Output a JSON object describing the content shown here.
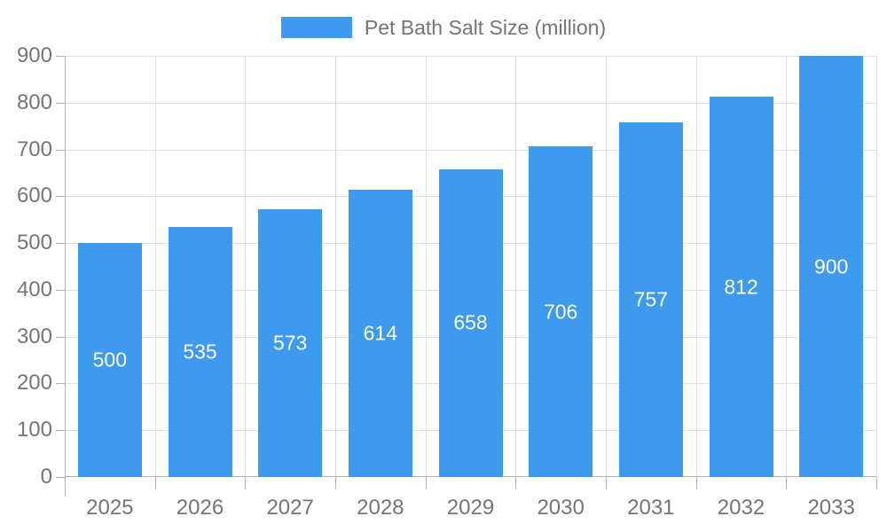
{
  "legend": {
    "label": "Pet Bath Salt Size (million)"
  },
  "chart_data": {
    "type": "bar",
    "title": "",
    "series_name": "Pet Bath Salt Size (million)",
    "categories": [
      "2025",
      "2026",
      "2027",
      "2028",
      "2029",
      "2030",
      "2031",
      "2032",
      "2033"
    ],
    "values": [
      500,
      535,
      573,
      614,
      658,
      706,
      757,
      812,
      900
    ],
    "value_labels": [
      "500",
      "535",
      "573",
      "614",
      "658",
      "706",
      "757",
      "812",
      "900"
    ],
    "xlabel": "",
    "ylabel": "",
    "ylim": [
      0,
      900
    ],
    "ytick_interval": 100,
    "ytick_labels": [
      "0",
      "100",
      "200",
      "300",
      "400",
      "500",
      "600",
      "700",
      "800",
      "900"
    ],
    "grid": true,
    "legend_position": "top",
    "colors": {
      "bar": "#3D9AEC",
      "value_label": "#FFFFFF",
      "axis_line": "#B0B0B0",
      "gridline": "#E0E0E0",
      "tick_label": "#757575",
      "legend_text": "#757575",
      "background": "#FFFFFF"
    }
  }
}
